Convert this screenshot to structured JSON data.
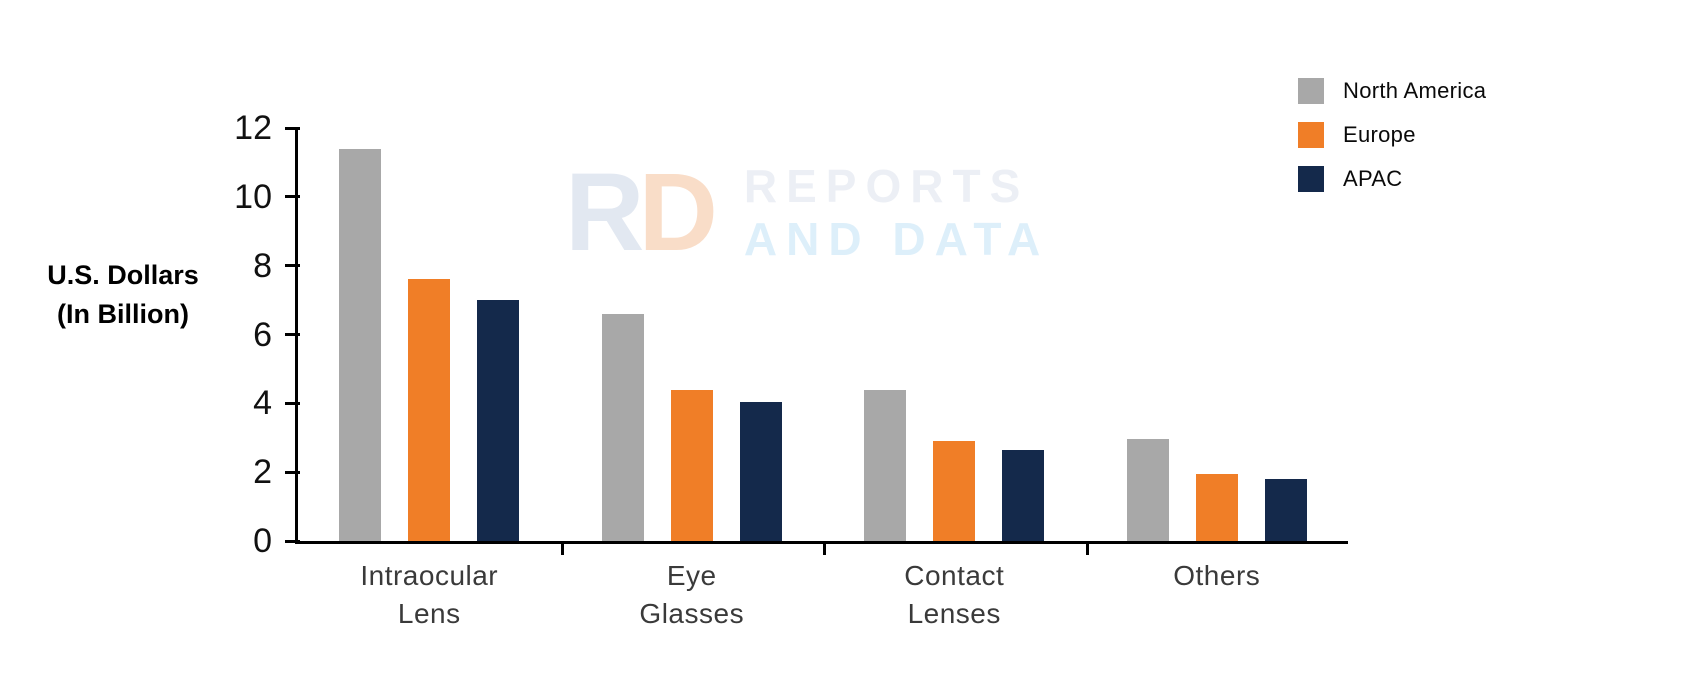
{
  "chart_data": {
    "type": "bar",
    "title": "",
    "xlabel": "",
    "ylabel": "U.S. Dollars\n(In Billion)",
    "ylim": [
      0,
      12
    ],
    "ytick_step": 2,
    "grid": false,
    "legend_position": "top-right",
    "categories": [
      "Intraocular\nLens",
      "Eye\nGlasses",
      "Contact\nLenses",
      "Others"
    ],
    "series": [
      {
        "name": "North America",
        "color": "#a8a8a8",
        "values": [
          11.4,
          6.6,
          4.4,
          2.95
        ]
      },
      {
        "name": "Europe",
        "color": "#f07e27",
        "values": [
          7.6,
          4.4,
          2.9,
          1.95
        ]
      },
      {
        "name": "APAC",
        "color": "#14294b",
        "values": [
          7.0,
          4.05,
          2.65,
          1.8
        ]
      }
    ]
  },
  "watermark": {
    "logo_r": "R",
    "logo_d": "D",
    "line1": "REPORTS",
    "line2": "AND DATA"
  }
}
